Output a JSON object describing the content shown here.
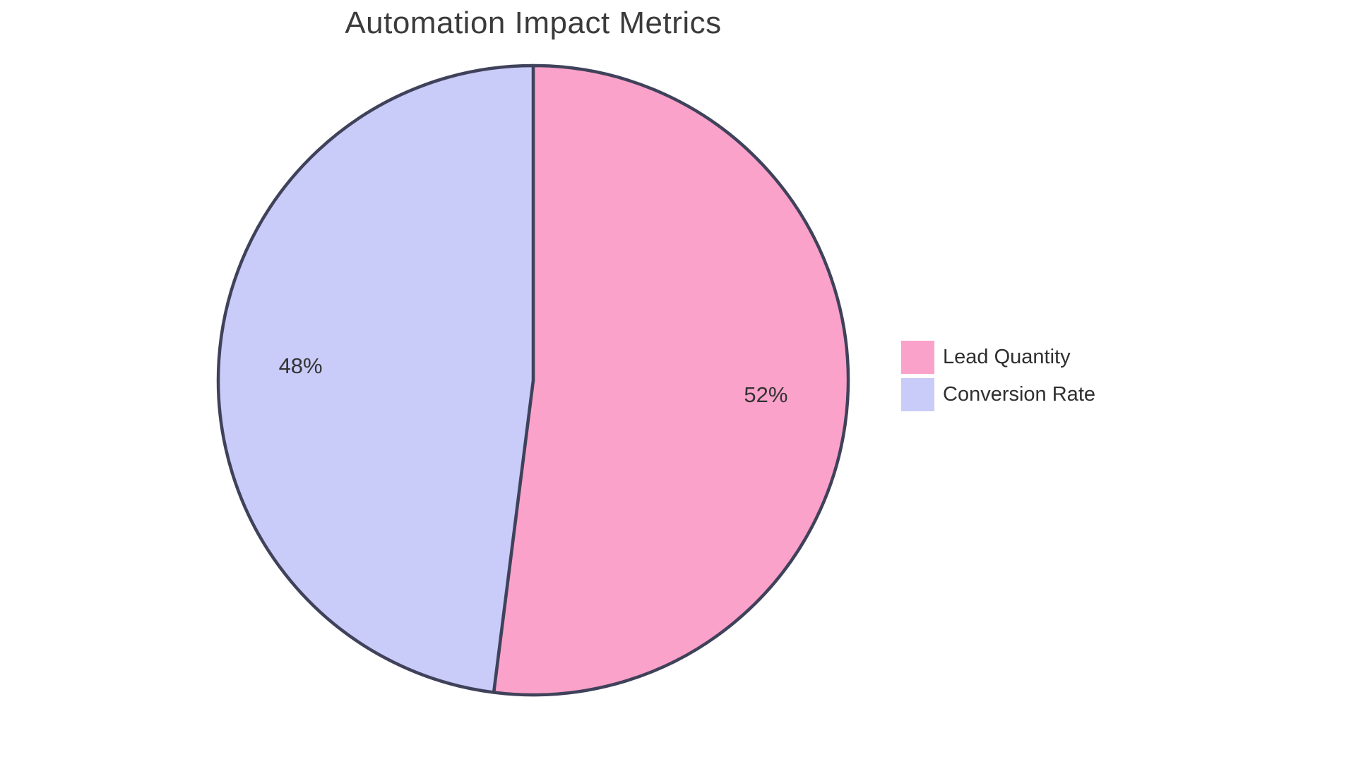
{
  "page": {
    "background_color": "#ffffff"
  },
  "chart_data": {
    "type": "pie",
    "title": "Automation Impact Metrics",
    "slices": [
      {
        "label": "Lead Quantity",
        "value": 52,
        "display": "52%",
        "color": "#FBA2CA"
      },
      {
        "label": "Conversion Rate",
        "value": 48,
        "display": "48%",
        "color": "#C9CBF8"
      }
    ],
    "start_angle_deg": 0,
    "direction": "clockwise",
    "stroke_color": "#3F425A",
    "stroke_width": 4.5,
    "label_color": "#333333",
    "label_font_size": 31,
    "label_radius_fraction": 0.74,
    "legend_position": "right",
    "grid": false
  }
}
